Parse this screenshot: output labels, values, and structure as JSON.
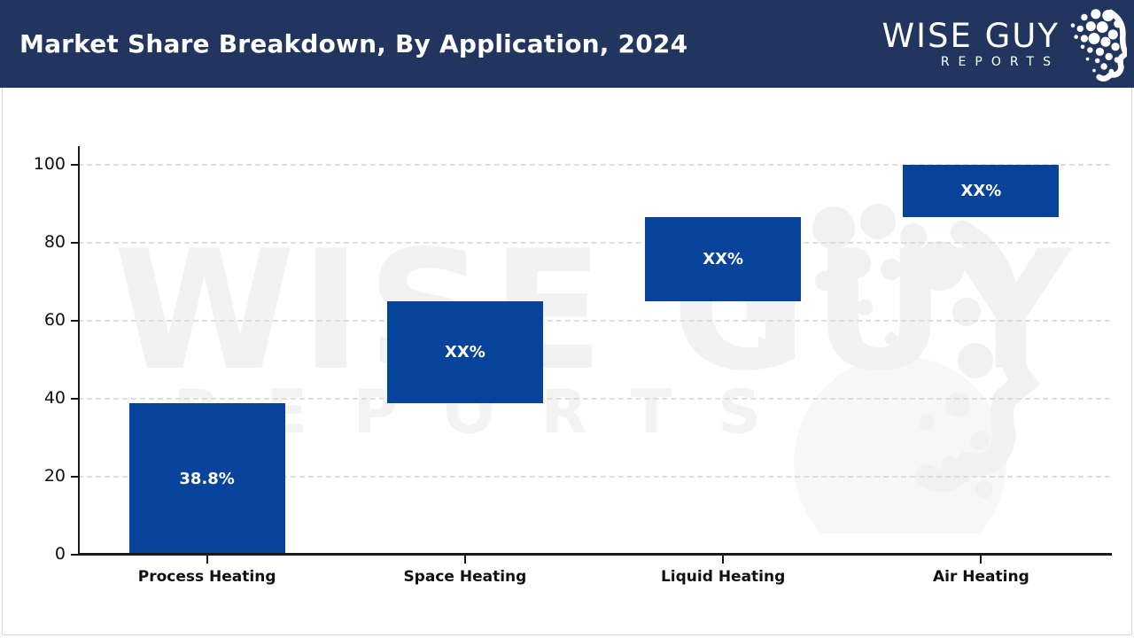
{
  "header": {
    "title": "Market Share Breakdown, By Application, 2024",
    "logo": {
      "line1": "WISE GUY",
      "line2": "REPORTS"
    }
  },
  "watermark": {
    "line1": "WISE GUY",
    "line2": "REPORTS"
  },
  "colors": {
    "header_bg": "#21355E",
    "bar": "#07439A",
    "grid": "#dedede",
    "axis": "#1a1a1a",
    "bar_label": "#ffffff",
    "watermark": "#f2f2f2"
  },
  "chart_data": {
    "type": "bar",
    "subtype": "floating-waterfall",
    "title": "Market Share Breakdown, By Application, 2024",
    "categories": [
      "Process Heating",
      "Space Heating",
      "Liquid Heating",
      "Air Heating"
    ],
    "segments": [
      {
        "category": "Process Heating",
        "start": 0,
        "end": 38.8,
        "label": "38.8%"
      },
      {
        "category": "Space Heating",
        "start": 38.8,
        "end": 65,
        "label": "XX%"
      },
      {
        "category": "Liquid Heating",
        "start": 65,
        "end": 86.5,
        "label": "XX%"
      },
      {
        "category": "Air Heating",
        "start": 86.5,
        "end": 100,
        "label": "XX%"
      }
    ],
    "yticks": [
      0,
      20,
      40,
      60,
      80,
      100
    ],
    "ylim": [
      0,
      105
    ],
    "xlabel": "",
    "ylabel": "",
    "grid": "horizontal-dashed",
    "legend_position": "none",
    "bar_color": "#07439A",
    "value_label_color": "#ffffff"
  }
}
